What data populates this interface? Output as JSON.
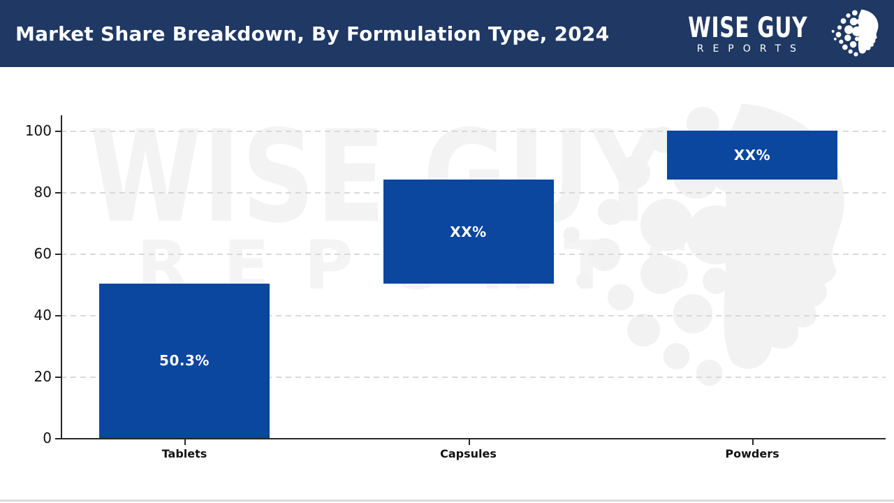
{
  "header": {
    "title": "Market Share Breakdown, By Formulation Type, 2024",
    "bg_color": "#1f3864",
    "logo": {
      "line1": "WISE GUY",
      "line2": "REPORTS"
    }
  },
  "watermark": {
    "line1": "WISE GUY",
    "line2": "REPORTS"
  },
  "chart_data": {
    "type": "bar",
    "subtype": "waterfall",
    "title": "Market Share Breakdown, By Formulation Type, 2024",
    "categories": [
      "Tablets",
      "Capsules",
      "Powders"
    ],
    "segments": [
      {
        "category": "Tablets",
        "start": 0,
        "end": 50.3,
        "label": "50.3%"
      },
      {
        "category": "Capsules",
        "start": 50.3,
        "end": 84,
        "label": "XX%"
      },
      {
        "category": "Powders",
        "start": 84,
        "end": 100,
        "label": "XX%"
      }
    ],
    "yticks": [
      0,
      20,
      40,
      60,
      80,
      100
    ],
    "ylim": [
      0,
      105
    ],
    "xlabel": "",
    "ylabel": "",
    "bar_color": "#0b469f",
    "grid": "horizontal-dashed",
    "legend": "none"
  }
}
